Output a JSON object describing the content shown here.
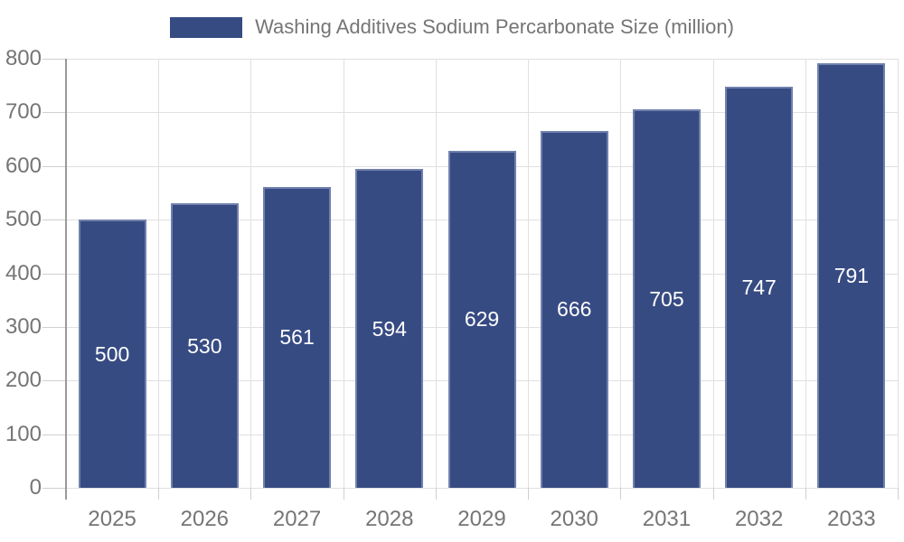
{
  "chart_data": {
    "type": "bar",
    "title": "Washing Additives Sodium Percarbonate Size (million)",
    "categories": [
      "2025",
      "2026",
      "2027",
      "2028",
      "2029",
      "2030",
      "2031",
      "2032",
      "2033"
    ],
    "values": [
      500,
      530,
      561,
      594,
      629,
      666,
      705,
      747,
      791
    ],
    "series_name": "Washing Additives Sodium Percarbonate Size (million)",
    "xlabel": "",
    "ylabel": "",
    "ylim": [
      0,
      800
    ],
    "ytick_step": 100,
    "ytick_labels": [
      "0",
      "100",
      "200",
      "300",
      "400",
      "500",
      "600",
      "700",
      "800"
    ],
    "grid": true,
    "legend_position": "top-center",
    "bar_label_position": "inside-middle",
    "colors": {
      "bar": "#374b83",
      "grid": "#e0e0e0",
      "axis_line": "#999999",
      "tick": "#cfcfcf",
      "axis_label": "#757575",
      "value_label": "#ffffff",
      "legend_text": "#757575",
      "background": "#ffffff"
    }
  }
}
